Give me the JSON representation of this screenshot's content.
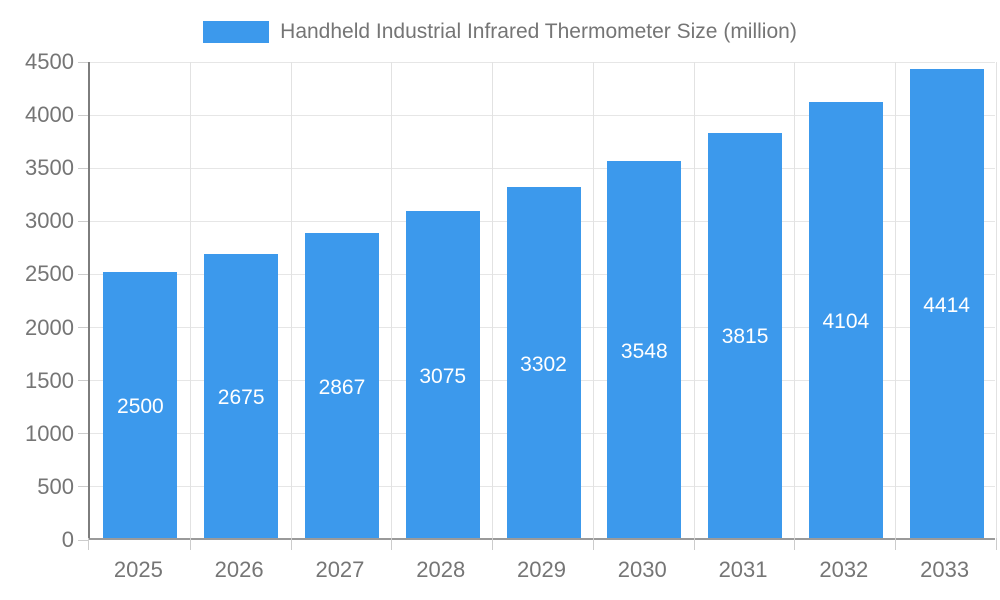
{
  "legend": {
    "label": "Handheld Industrial Infrared Thermometer Size (million)"
  },
  "chart_data": {
    "type": "bar",
    "title": "Handheld Industrial Infrared Thermometer Size (million)",
    "categories": [
      "2025",
      "2026",
      "2027",
      "2028",
      "2029",
      "2030",
      "2031",
      "2032",
      "2033"
    ],
    "values": [
      2500,
      2675,
      2867,
      3075,
      3302,
      3548,
      3815,
      4104,
      4414
    ],
    "xlabel": "",
    "ylabel": "",
    "ylim": [
      0,
      4500
    ],
    "yticks": [
      0,
      500,
      1000,
      1500,
      2000,
      2500,
      3000,
      3500,
      4000,
      4500
    ],
    "legend_position": "top",
    "grid": true,
    "colors": {
      "bar": "#3C99EC",
      "value_label": "#FFFFFF",
      "axis_text": "#757575",
      "gridline_h": "#E6E6E6",
      "gridline_v": "#E2E2E2",
      "tick": "#CCCCCC",
      "axis_line_left": "#7D7D7D",
      "axis_line_bottom": "#9A9A9A"
    }
  }
}
